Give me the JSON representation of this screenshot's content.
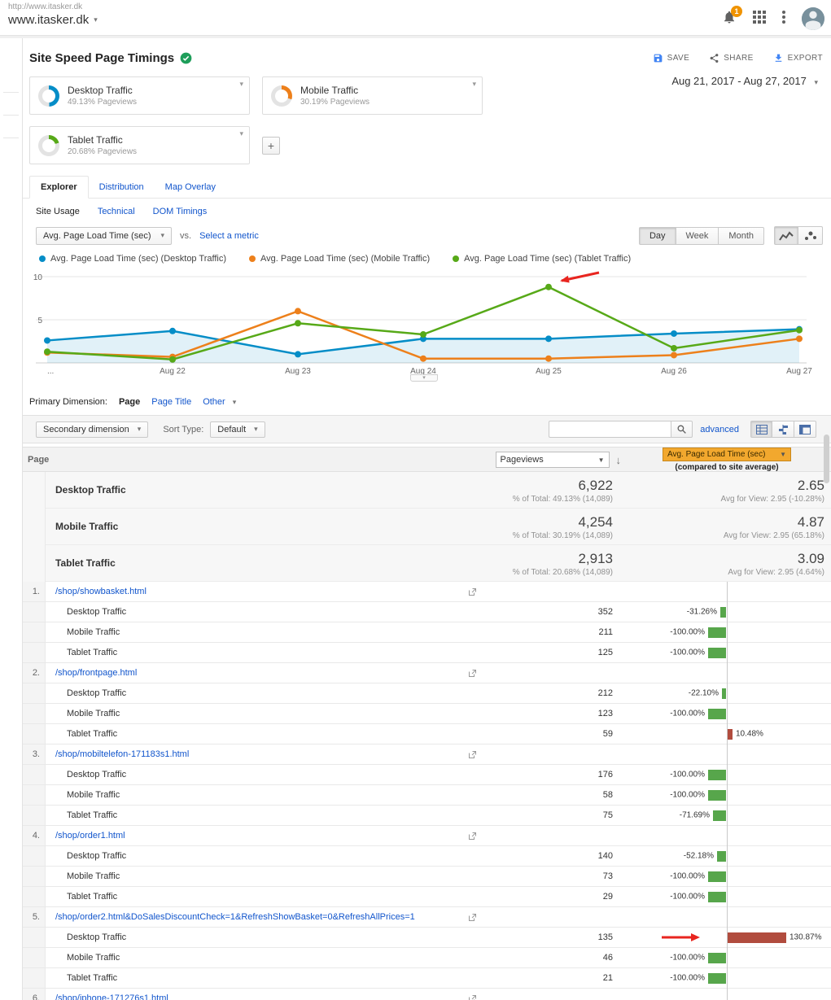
{
  "header": {
    "url": "http://www.itasker.dk",
    "account": "www.itasker.dk",
    "notification_count": "1"
  },
  "report": {
    "title": "Site Speed Page Timings",
    "save_label": "SAVE",
    "share_label": "SHARE",
    "export_label": "EXPORT",
    "date_range": "Aug 21, 2017 - Aug 27, 2017"
  },
  "segments": [
    {
      "name": "Desktop Traffic",
      "detail": "49.13% Pageviews",
      "pct": 49.13,
      "color": "#058dc7"
    },
    {
      "name": "Mobile Traffic",
      "detail": "30.19% Pageviews",
      "pct": 30.19,
      "color": "#ed801b"
    },
    {
      "name": "Tablet Traffic",
      "detail": "20.68% Pageviews",
      "pct": 20.68,
      "color": "#57a918"
    }
  ],
  "add_segment_label": "+",
  "tabs": {
    "explorer": "Explorer",
    "distribution": "Distribution",
    "map_overlay": "Map Overlay"
  },
  "subtabs": {
    "site_usage": "Site Usage",
    "technical": "Technical",
    "dom_timings": "DOM Timings"
  },
  "controls": {
    "metric_select": "Avg. Page Load Time (sec)",
    "vs_label": "vs.",
    "select_metric_label": "Select a metric",
    "day": "Day",
    "week": "Week",
    "month": "Month"
  },
  "chart_data": {
    "type": "line",
    "title": "Avg. Page Load Time (sec) by day",
    "x_labels": [
      "...",
      "Aug 22",
      "Aug 23",
      "Aug 24",
      "Aug 25",
      "Aug 26",
      "Aug 27"
    ],
    "ylim": [
      0,
      10
    ],
    "yticks": [
      5,
      10
    ],
    "grid": true,
    "legend_position": "top",
    "series": [
      {
        "name": "Avg. Page Load Time (sec) (Desktop Traffic)",
        "color": "#058dc7",
        "fill": true,
        "values": [
          2.6,
          3.7,
          1.0,
          2.8,
          2.8,
          3.4,
          3.9
        ]
      },
      {
        "name": "Avg. Page Load Time (sec) (Mobile Traffic)",
        "color": "#ed801b",
        "fill": false,
        "values": [
          1.2,
          0.7,
          6.0,
          0.5,
          0.5,
          0.9,
          2.8
        ]
      },
      {
        "name": "Avg. Page Load Time (sec) (Tablet Traffic)",
        "color": "#57a918",
        "fill": false,
        "values": [
          1.3,
          0.4,
          4.6,
          3.3,
          8.8,
          1.7,
          3.8
        ]
      }
    ],
    "annotation": "red arrow pointing at Tablet Traffic peak on Aug 25"
  },
  "dimension_bar": {
    "label": "Primary Dimension:",
    "page": "Page",
    "page_title": "Page Title",
    "other": "Other"
  },
  "toolbar": {
    "secondary_dimension": "Secondary dimension",
    "sort_type_label": "Sort Type:",
    "sort_type_value": "Default",
    "search_value": "",
    "advanced_label": "advanced"
  },
  "table": {
    "columns": {
      "page": "Page",
      "pageviews": "Pageviews",
      "metric": "Avg. Page Load Time (sec)",
      "metric_sub": "(compared to site average)"
    },
    "bar_colors": {
      "positive": "#b14c3e",
      "negative": "#57a64b"
    },
    "arrow_color": "#e8251f",
    "summary_rows": [
      {
        "name": "Desktop Traffic",
        "pageviews": "6,922",
        "pv_sub": "% of Total: 49.13% (14,089)",
        "metric": "2.65",
        "metric_sub": "Avg for View: 2.95 (-10.28%)"
      },
      {
        "name": "Mobile Traffic",
        "pageviews": "4,254",
        "pv_sub": "% of Total: 30.19% (14,089)",
        "metric": "4.87",
        "metric_sub": "Avg for View: 2.95 (65.18%)"
      },
      {
        "name": "Tablet Traffic",
        "pageviews": "2,913",
        "pv_sub": "% of Total: 20.68% (14,089)",
        "metric": "3.09",
        "metric_sub": "Avg for View: 2.95 (4.64%)"
      }
    ],
    "rows": [
      {
        "num": "1.",
        "page": "/shop/showbasket.html",
        "devices": [
          {
            "name": "Desktop Traffic",
            "pageviews": "352",
            "change_pct": -31.26,
            "change_label": "-31.26%"
          },
          {
            "name": "Mobile Traffic",
            "pageviews": "211",
            "change_pct": -100.0,
            "change_label": "-100.00%"
          },
          {
            "name": "Tablet Traffic",
            "pageviews": "125",
            "change_pct": -100.0,
            "change_label": "-100.00%"
          }
        ]
      },
      {
        "num": "2.",
        "page": "/shop/frontpage.html",
        "devices": [
          {
            "name": "Desktop Traffic",
            "pageviews": "212",
            "change_pct": -22.1,
            "change_label": "-22.10%"
          },
          {
            "name": "Mobile Traffic",
            "pageviews": "123",
            "change_pct": -100.0,
            "change_label": "-100.00%"
          },
          {
            "name": "Tablet Traffic",
            "pageviews": "59",
            "change_pct": 10.48,
            "change_label": "10.48%"
          }
        ]
      },
      {
        "num": "3.",
        "page": "/shop/mobiltelefon-171183s1.html",
        "devices": [
          {
            "name": "Desktop Traffic",
            "pageviews": "176",
            "change_pct": -100.0,
            "change_label": "-100.00%"
          },
          {
            "name": "Mobile Traffic",
            "pageviews": "58",
            "change_pct": -100.0,
            "change_label": "-100.00%"
          },
          {
            "name": "Tablet Traffic",
            "pageviews": "75",
            "change_pct": -71.69,
            "change_label": "-71.69%"
          }
        ]
      },
      {
        "num": "4.",
        "page": "/shop/order1.html",
        "devices": [
          {
            "name": "Desktop Traffic",
            "pageviews": "140",
            "change_pct": -52.18,
            "change_label": "-52.18%"
          },
          {
            "name": "Mobile Traffic",
            "pageviews": "73",
            "change_pct": -100.0,
            "change_label": "-100.00%"
          },
          {
            "name": "Tablet Traffic",
            "pageviews": "29",
            "change_pct": -100.0,
            "change_label": "-100.00%"
          }
        ]
      },
      {
        "num": "5.",
        "page": "/shop/order2.html&DoSalesDiscountCheck=1&RefreshShowBasket=0&RefreshAllPrices=1",
        "devices": [
          {
            "name": "Desktop Traffic",
            "pageviews": "135",
            "change_pct": 130.87,
            "change_label": "130.87%",
            "arrow": true
          },
          {
            "name": "Mobile Traffic",
            "pageviews": "46",
            "change_pct": -100.0,
            "change_label": "-100.00%"
          },
          {
            "name": "Tablet Traffic",
            "pageviews": "21",
            "change_pct": -100.0,
            "change_label": "-100.00%"
          }
        ]
      },
      {
        "num": "6.",
        "page": "/shop/iphone-171276s1.html",
        "devices": []
      }
    ]
  }
}
